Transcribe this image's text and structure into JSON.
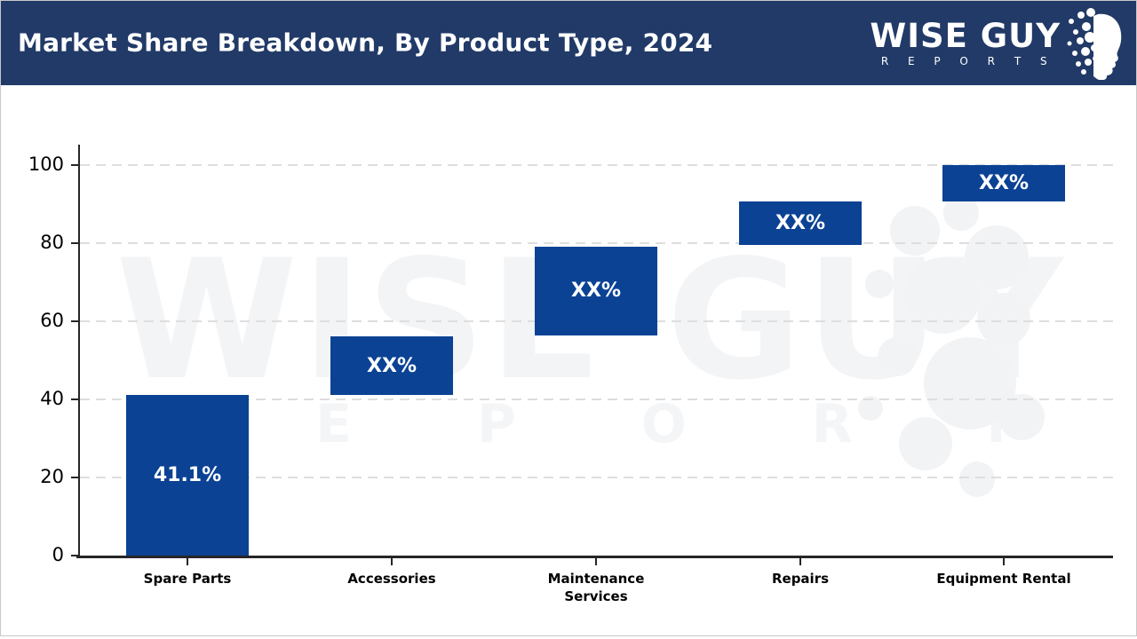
{
  "header": {
    "title": "Market Share Breakdown, By Product Type, 2024",
    "logo": {
      "line1": "WISE GUY",
      "line2": "R E P O R T S"
    }
  },
  "watermark": {
    "line1": "WISE GUY",
    "line2": "R E P O R T S"
  },
  "colors": {
    "header_bg": "#213a67",
    "bar": "#0b4294",
    "bar_label": "#ffffff",
    "gridline": "#dedede",
    "axis": "#262626",
    "watermark": "#f3f4f6",
    "frame": "#c9c9c9"
  },
  "chart_data": {
    "type": "bar",
    "subtype": "waterfall",
    "title": "Market Share Breakdown, By Product Type, 2024",
    "categories": [
      "Spare Parts",
      "Accessories",
      "Maintenance\nServices",
      "Repairs",
      "Equipment Rental"
    ],
    "segments": [
      {
        "category": "Spare Parts",
        "start": 0,
        "end": 41.1,
        "label": "41.1%"
      },
      {
        "category": "Accessories",
        "start": 41.1,
        "end": 56.1,
        "label": "XX%"
      },
      {
        "category": "Maintenance Services",
        "start": 56.4,
        "end": 79.1,
        "label": "XX%"
      },
      {
        "category": "Repairs",
        "start": 79.5,
        "end": 90.6,
        "label": "XX%"
      },
      {
        "category": "Equipment Rental",
        "start": 90.7,
        "end": 100,
        "label": "XX%"
      }
    ],
    "xlabel": "",
    "ylabel": "",
    "ylim": [
      0,
      105
    ],
    "yticks": [
      0,
      20,
      40,
      60,
      80,
      100
    ],
    "grid": "horizontal-dashed",
    "legend": "none"
  }
}
